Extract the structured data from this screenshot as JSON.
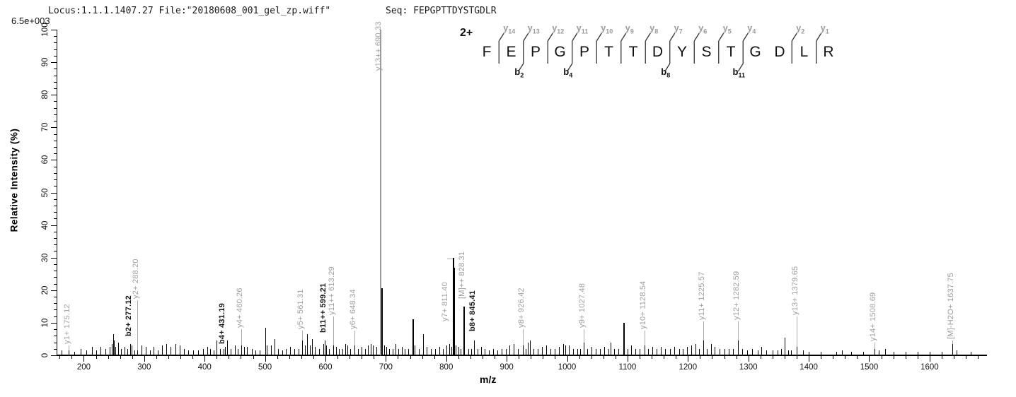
{
  "header": {
    "locus_file": "Locus:1.1.1.1407.27 File:\"20180608_001_gel_zp.wiff\"",
    "seq_label": "Seq: FEPGPTTDYSTGDLR",
    "intensity_scale": "6.5e+003"
  },
  "peptide": {
    "charge_label": "2+",
    "residues": [
      "F",
      "E",
      "P",
      "G",
      "P",
      "T",
      "T",
      "D",
      "Y",
      "S",
      "T",
      "G",
      "D",
      "L",
      "R"
    ],
    "fragments": [
      {
        "gap": 1,
        "y": "14"
      },
      {
        "gap": 2,
        "y": "13",
        "b": "2"
      },
      {
        "gap": 3,
        "y": "12"
      },
      {
        "gap": 4,
        "y": "11",
        "b": "4"
      },
      {
        "gap": 5,
        "y": "10"
      },
      {
        "gap": 6,
        "y": "9"
      },
      {
        "gap": 7,
        "y": "8"
      },
      {
        "gap": 8,
        "y": "7",
        "b": "8"
      },
      {
        "gap": 9,
        "y": "6"
      },
      {
        "gap": 10,
        "y": "5"
      },
      {
        "gap": 11,
        "y": "4",
        "b": "11"
      },
      {
        "gap": 13,
        "y": "2"
      },
      {
        "gap": 14,
        "y": "1"
      }
    ]
  },
  "chart_data": {
    "type": "bar",
    "subtype": "ms2-stick-spectrum",
    "title": "Locus:1.1.1.1407.27 File:\"20180608_001_gel_zp.wiff\"  Seq: FEPGPTTDYSTGDLR",
    "xlabel": "m/z",
    "ylabel": "Relative  Intensity  (%)",
    "intensity_scale": "6.5e+003",
    "xlim": [
      155,
      1695
    ],
    "ylim": [
      0,
      100
    ],
    "x_tick_labels": [
      200,
      300,
      400,
      500,
      600,
      700,
      800,
      900,
      1000,
      1100,
      1200,
      1300,
      1400,
      1500,
      1600
    ],
    "x_minor_step": 20,
    "y_tick_step": 10,
    "y_minor_step": 2,
    "grid": false,
    "labeled_peaks": [
      {
        "mz": 175.12,
        "i": 1.5,
        "label": "y1+ 175.12",
        "ion": "y",
        "lb": 3,
        "leader": true
      },
      {
        "mz": 277.12,
        "i": 3.5,
        "label": "b2+ 277.12",
        "ion": "b",
        "lb": 5.5,
        "leader": false
      },
      {
        "mz": 288.2,
        "i": 1.5,
        "label": "y2+ 288.20",
        "ion": "y",
        "lb": 17,
        "leader": true
      },
      {
        "mz": 431.19,
        "i": 2,
        "label": "b4+ 431.19",
        "ion": "b",
        "lb": 3,
        "leader": false
      },
      {
        "mz": 460.26,
        "i": 3,
        "label": "y4+ 460.26",
        "ion": "y",
        "lb": 8,
        "leader": true
      },
      {
        "mz": 561.31,
        "i": 4.5,
        "label": "y5+ 561.31",
        "ion": "y",
        "lb": 7.5,
        "leader": true
      },
      {
        "mz": 599.21,
        "i": 4.5,
        "label": "b11++ 599.21",
        "ion": "b",
        "lb": 6.5,
        "leader": false
      },
      {
        "mz": 613.29,
        "i": 3,
        "label": "y11++ 613.29",
        "ion": "y",
        "lb": 12,
        "leader": true
      },
      {
        "mz": 648.34,
        "i": 3,
        "label": "y6+ 648.34",
        "ion": "y",
        "lb": 7.5,
        "leader": true
      },
      {
        "mz": 690.33,
        "i": 100,
        "label": "y13++ 690.33",
        "ion": "y",
        "lb": 87,
        "leader": false,
        "peak_color": "#9a9a9a"
      },
      {
        "mz": 811.4,
        "i": 30,
        "label": "y7+ 811.40",
        "ion": "y",
        "lb": 10,
        "leader": false,
        "dx": -9,
        "connector": true
      },
      {
        "mz": 828.31,
        "i": 15,
        "label": "[M]++ 828.31",
        "ion": "M",
        "lb": 17,
        "leader": false
      },
      {
        "mz": 845.41,
        "i": 4.5,
        "label": "b8+ 845.41",
        "ion": "b",
        "lb": 7,
        "leader": false
      },
      {
        "mz": 926.42,
        "i": 3,
        "label": "y8+ 926.42",
        "ion": "y",
        "lb": 8,
        "leader": true
      },
      {
        "mz": 1027.48,
        "i": 4,
        "label": "y9+ 1027.48",
        "ion": "y",
        "lb": 8,
        "leader": true
      },
      {
        "mz": 1128.54,
        "i": 3,
        "label": "y10+ 1128.54",
        "ion": "y",
        "lb": 7.5,
        "leader": true
      },
      {
        "mz": 1225.57,
        "i": 4.5,
        "label": "y11+ 1225.57",
        "ion": "y",
        "lb": 10.5,
        "leader": true
      },
      {
        "mz": 1282.59,
        "i": 4.5,
        "label": "y12+ 1282.59",
        "ion": "y",
        "lb": 10.5,
        "leader": true
      },
      {
        "mz": 1379.65,
        "i": 2.5,
        "label": "y13+ 1379.65",
        "ion": "y",
        "lb": 12,
        "leader": true
      },
      {
        "mz": 1508.69,
        "i": 2,
        "label": "y14+ 1508.69",
        "ion": "y",
        "lb": 4,
        "leader": true
      },
      {
        "mz": 1637.75,
        "i": 3.5,
        "label": "[M]-H2O+ 1637.75",
        "ion": "M",
        "lb": 4.5,
        "leader": true
      }
    ],
    "noise_peaks": [
      [
        163,
        1.5
      ],
      [
        184,
        1
      ],
      [
        195,
        2
      ],
      [
        204,
        1.5
      ],
      [
        213,
        2.5
      ],
      [
        220,
        1.5
      ],
      [
        228,
        2.5
      ],
      [
        236,
        2
      ],
      [
        243,
        2.5
      ],
      [
        246,
        3.5
      ],
      [
        248.5,
        6.5
      ],
      [
        250,
        4.5
      ],
      [
        252,
        2.5
      ],
      [
        257,
        4
      ],
      [
        262,
        2
      ],
      [
        267,
        2.5
      ],
      [
        272,
        2
      ],
      [
        279,
        3
      ],
      [
        284,
        1.5
      ],
      [
        296,
        3
      ],
      [
        302,
        2.5
      ],
      [
        309,
        1.5
      ],
      [
        316,
        2.5
      ],
      [
        323,
        1.5
      ],
      [
        330,
        3
      ],
      [
        337,
        3.5
      ],
      [
        344,
        2.5
      ],
      [
        352,
        3.5
      ],
      [
        359,
        3
      ],
      [
        366,
        2
      ],
      [
        373,
        1.5
      ],
      [
        381,
        1.5
      ],
      [
        389,
        1.5
      ],
      [
        398,
        2
      ],
      [
        404,
        2.5
      ],
      [
        409,
        2
      ],
      [
        415,
        1.5
      ],
      [
        420,
        4.5
      ],
      [
        425,
        2
      ],
      [
        434,
        2.5
      ],
      [
        437,
        4.5
      ],
      [
        443,
        2
      ],
      [
        450,
        3
      ],
      [
        455,
        2
      ],
      [
        465,
        2.5
      ],
      [
        470,
        2.5
      ],
      [
        478,
        2
      ],
      [
        484,
        1.5
      ],
      [
        491,
        1.5
      ],
      [
        500,
        8.5
      ],
      [
        503,
        3
      ],
      [
        510,
        3
      ],
      [
        516,
        5
      ],
      [
        522,
        2
      ],
      [
        529,
        1.5
      ],
      [
        535,
        2
      ],
      [
        541,
        2.5
      ],
      [
        548,
        2
      ],
      [
        555,
        2
      ],
      [
        566,
        3
      ],
      [
        570,
        6.5
      ],
      [
        574,
        3
      ],
      [
        578,
        5
      ],
      [
        583,
        2.5
      ],
      [
        590,
        2
      ],
      [
        596,
        3.5
      ],
      [
        601,
        3
      ],
      [
        606,
        2
      ],
      [
        617,
        2.5
      ],
      [
        622,
        2
      ],
      [
        628,
        2
      ],
      [
        633,
        3.5
      ],
      [
        636,
        3
      ],
      [
        641,
        2
      ],
      [
        654,
        2
      ],
      [
        660,
        2.5
      ],
      [
        666,
        2
      ],
      [
        670,
        3
      ],
      [
        675,
        3.5
      ],
      [
        679,
        3
      ],
      [
        684,
        2.5
      ],
      [
        692.3,
        20.5
      ],
      [
        697,
        3
      ],
      [
        701,
        2.5
      ],
      [
        706,
        2
      ],
      [
        711,
        2
      ],
      [
        716,
        3.5
      ],
      [
        721,
        2
      ],
      [
        726,
        2.5
      ],
      [
        731,
        2
      ],
      [
        737,
        2
      ],
      [
        744,
        11
      ],
      [
        748,
        3
      ],
      [
        755,
        2
      ],
      [
        762,
        6.5
      ],
      [
        768,
        2.5
      ],
      [
        775,
        2
      ],
      [
        781,
        2
      ],
      [
        788,
        2.5
      ],
      [
        794,
        2
      ],
      [
        800,
        3
      ],
      [
        805,
        3.5
      ],
      [
        808,
        2.5
      ],
      [
        812.4,
        27
      ],
      [
        816,
        3
      ],
      [
        820,
        2.5
      ],
      [
        824,
        2
      ],
      [
        830,
        5
      ],
      [
        836,
        2
      ],
      [
        841,
        2
      ],
      [
        846.4,
        3
      ],
      [
        852,
        2
      ],
      [
        858,
        2.5
      ],
      [
        864,
        2
      ],
      [
        871,
        1.5
      ],
      [
        878,
        2
      ],
      [
        885,
        1.5
      ],
      [
        892,
        2
      ],
      [
        899,
        2
      ],
      [
        905,
        3
      ],
      [
        912,
        3.5
      ],
      [
        918,
        2
      ],
      [
        931,
        2
      ],
      [
        935,
        4
      ],
      [
        939,
        4.5
      ],
      [
        944,
        2
      ],
      [
        951,
        2
      ],
      [
        958,
        2.5
      ],
      [
        965,
        3
      ],
      [
        972,
        2
      ],
      [
        979,
        2
      ],
      [
        986,
        2.5
      ],
      [
        993,
        3.5
      ],
      [
        997,
        3
      ],
      [
        1003,
        3
      ],
      [
        1010,
        2
      ],
      [
        1017,
        2
      ],
      [
        1022,
        2
      ],
      [
        1033,
        2
      ],
      [
        1040,
        2.5
      ],
      [
        1047,
        2
      ],
      [
        1054,
        2
      ],
      [
        1061,
        2.5
      ],
      [
        1068,
        2
      ],
      [
        1072,
        4
      ],
      [
        1078,
        2
      ],
      [
        1085,
        2
      ],
      [
        1093,
        10
      ],
      [
        1100,
        2
      ],
      [
        1106,
        3
      ],
      [
        1113,
        2
      ],
      [
        1120,
        2
      ],
      [
        1134,
        2
      ],
      [
        1141,
        2.5
      ],
      [
        1148,
        2
      ],
      [
        1155,
        2.5
      ],
      [
        1162,
        2
      ],
      [
        1170,
        2
      ],
      [
        1177,
        2.5
      ],
      [
        1185,
        2
      ],
      [
        1192,
        2
      ],
      [
        1199,
        2.5
      ],
      [
        1205,
        3
      ],
      [
        1212,
        3.5
      ],
      [
        1218,
        2
      ],
      [
        1231,
        2
      ],
      [
        1238,
        3.5
      ],
      [
        1244,
        2.5
      ],
      [
        1252,
        2
      ],
      [
        1260,
        2
      ],
      [
        1268,
        2
      ],
      [
        1275,
        2
      ],
      [
        1290,
        2
      ],
      [
        1298,
        1.5
      ],
      [
        1306,
        2
      ],
      [
        1315,
        1.5
      ],
      [
        1322,
        2.5
      ],
      [
        1330,
        1.5
      ],
      [
        1340,
        1.5
      ],
      [
        1348,
        1.5
      ],
      [
        1354,
        2
      ],
      [
        1360,
        5.5
      ],
      [
        1366,
        1.5
      ],
      [
        1371,
        1.5
      ],
      [
        1390,
        1.5
      ],
      [
        1400,
        1
      ],
      [
        1420,
        1
      ],
      [
        1445,
        1
      ],
      [
        1455,
        1.5
      ],
      [
        1470,
        1
      ],
      [
        1490,
        1
      ],
      [
        1516,
        1.5
      ],
      [
        1526,
        2
      ],
      [
        1540,
        1
      ],
      [
        1560,
        1
      ],
      [
        1580,
        1
      ],
      [
        1600,
        1
      ],
      [
        1620,
        1
      ],
      [
        1645,
        1.5
      ],
      [
        1668,
        1
      ]
    ]
  },
  "colors": {
    "peak": "#000000",
    "gray_label": "#a0a0a0",
    "axis": "#000000"
  }
}
